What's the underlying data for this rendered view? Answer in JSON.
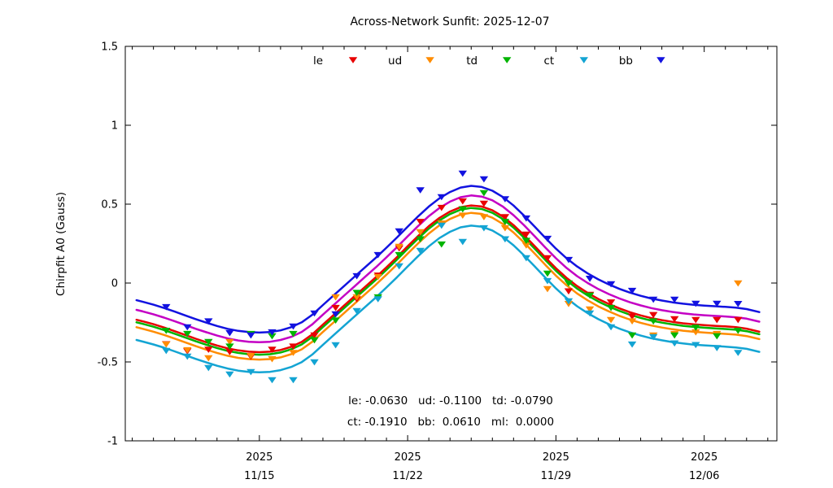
{
  "title": "Across-Network Sunfit: 2025-12-07",
  "chart_data": {
    "type": "line+scatter",
    "title": "Across-Network Sunfit: 2025-12-07",
    "xlabel": "",
    "ylabel": "Chirpfit A0 (Gauss)",
    "ylim": [
      -1,
      1.5
    ],
    "grid": false,
    "background_color": "#ffffff",
    "axis_color": "#000000",
    "marker_shape": "triangle-down",
    "yticks": [
      {
        "value": 1.5,
        "label": "1.5"
      },
      {
        "value": 1.0,
        "label": "1"
      },
      {
        "value": 0.5,
        "label": "0.5"
      },
      {
        "value": 0.0,
        "label": "0"
      },
      {
        "value": -0.5,
        "label": "-0.5"
      },
      {
        "value": -1.0,
        "label": "-1"
      }
    ],
    "x_day0_date": "2025-11-09",
    "x_domain_days": [
      -0.33,
      30.43
    ],
    "x_minor_tick_days": [
      0,
      1,
      2,
      3,
      4,
      5,
      6,
      7,
      8,
      9,
      10,
      11,
      12,
      13,
      14,
      15,
      16,
      17,
      18,
      19,
      20,
      21,
      22,
      23,
      24,
      25,
      26,
      27,
      28,
      29,
      30
    ],
    "x_major_ticks": [
      {
        "day": 6,
        "line1": "2025",
        "line2": "11/15"
      },
      {
        "day": 13,
        "line1": "2025",
        "line2": "11/22"
      },
      {
        "day": 20,
        "line1": "2025",
        "line2": "11/29"
      },
      {
        "day": 27,
        "line1": "2025",
        "line2": "12/06"
      }
    ],
    "legend": {
      "position": "top-center-inside",
      "entries": [
        {
          "label": "le",
          "color": "#e80000"
        },
        {
          "label": "ud",
          "color": "#ff8c00"
        },
        {
          "label": "td",
          "color": "#00b400"
        },
        {
          "label": "ct",
          "color": "#13a4d3"
        },
        {
          "label": "bb",
          "color": "#1212e0"
        }
      ]
    },
    "annotation": {
      "lines": [
        "le: -0.0630   ud: -0.1100   td: -0.0790",
        "ct: -0.1910   bb:  0.0610   ml:  0.0000"
      ]
    },
    "fit_offsets": {
      "le": -0.063,
      "ud": -0.11,
      "td": -0.079,
      "ct": -0.191,
      "bb": 0.061,
      "ml": 0.0
    },
    "base_curve_days": [
      0.2,
      0.5,
      1,
      1.5,
      2,
      2.5,
      3,
      3.5,
      4,
      4.5,
      5,
      5.5,
      6,
      6.5,
      7,
      7.5,
      8,
      8.5,
      9,
      9.5,
      10,
      10.5,
      11,
      11.5,
      12,
      12.5,
      13,
      13.5,
      14,
      14.5,
      15,
      15.5,
      16,
      16.5,
      17,
      17.5,
      18,
      18.5,
      19,
      19.5,
      20,
      20.5,
      21,
      21.5,
      22,
      22.5,
      23,
      23.5,
      24,
      24.5,
      25,
      25.5,
      26,
      26.5,
      27,
      27.5,
      28,
      28.5,
      29,
      29.6
    ],
    "base_curve_values": [
      -0.17,
      -0.18,
      -0.198,
      -0.219,
      -0.242,
      -0.266,
      -0.29,
      -0.312,
      -0.333,
      -0.351,
      -0.364,
      -0.372,
      -0.375,
      -0.372,
      -0.361,
      -0.341,
      -0.31,
      -0.262,
      -0.2,
      -0.14,
      -0.08,
      -0.02,
      0.04,
      0.1,
      0.163,
      0.228,
      0.296,
      0.362,
      0.424,
      0.476,
      0.516,
      0.544,
      0.555,
      0.548,
      0.524,
      0.484,
      0.43,
      0.366,
      0.296,
      0.225,
      0.157,
      0.096,
      0.044,
      0.0,
      -0.038,
      -0.07,
      -0.098,
      -0.122,
      -0.142,
      -0.159,
      -0.172,
      -0.183,
      -0.192,
      -0.199,
      -0.204,
      -0.208,
      -0.212,
      -0.217,
      -0.226,
      -0.245
    ],
    "curve_draw_order": [
      "ct",
      "ud",
      "td",
      "le",
      "ml",
      "bb"
    ],
    "extra_curves": [
      {
        "name": "ml",
        "color": "#c400c4",
        "offset": 0.0
      }
    ],
    "scatter_days": [
      1.6,
      2.6,
      3.6,
      4.6,
      5.6,
      6.6,
      7.6,
      8.6,
      9.6,
      10.6,
      11.6,
      12.6,
      13.6,
      14.6,
      15.6,
      16.6,
      17.6,
      18.6,
      19.6,
      20.6,
      21.6,
      22.6,
      23.6,
      24.6,
      25.6,
      26.6,
      27.6,
      28.6
    ],
    "series": [
      {
        "name": "le",
        "color": "#e80000",
        "offset": -0.063,
        "values": [
          -0.385,
          -0.43,
          -0.42,
          -0.435,
          -0.465,
          -0.42,
          -0.4,
          -0.33,
          -0.155,
          -0.1,
          0.05,
          0.222,
          0.39,
          0.479,
          0.52,
          0.505,
          0.42,
          0.31,
          0.16,
          -0.05,
          -0.072,
          -0.12,
          -0.21,
          -0.2,
          -0.227,
          -0.232,
          -0.232,
          -0.232
        ]
      },
      {
        "name": "ud",
        "color": "#ff8c00",
        "offset": -0.11,
        "values": [
          -0.387,
          -0.423,
          -0.474,
          -0.371,
          -0.46,
          -0.48,
          -0.44,
          -0.36,
          -0.088,
          -0.088,
          0.04,
          0.232,
          0.325,
          0.38,
          0.43,
          0.42,
          0.35,
          0.24,
          -0.036,
          -0.13,
          -0.165,
          -0.232,
          -0.24,
          -0.33,
          -0.32,
          -0.31,
          -0.32,
          0.0
        ]
      },
      {
        "name": "td",
        "color": "#00b400",
        "offset": -0.079,
        "values": [
          -0.3,
          -0.32,
          -0.371,
          -0.4,
          -0.32,
          -0.335,
          -0.32,
          -0.36,
          -0.235,
          -0.06,
          -0.088,
          0.18,
          0.28,
          0.247,
          0.47,
          0.572,
          0.39,
          0.27,
          0.062,
          0.0,
          -0.077,
          -0.155,
          -0.33,
          -0.24,
          -0.33,
          -0.28,
          -0.335,
          -0.3
        ]
      },
      {
        "name": "ct",
        "color": "#13a4d3",
        "offset": -0.191,
        "values": [
          -0.428,
          -0.464,
          -0.536,
          -0.577,
          -0.562,
          -0.613,
          -0.613,
          -0.5,
          -0.392,
          -0.175,
          -0.1,
          0.108,
          0.206,
          0.366,
          0.263,
          0.35,
          0.28,
          0.16,
          0.015,
          -0.113,
          -0.19,
          -0.278,
          -0.387,
          -0.34,
          -0.38,
          -0.39,
          -0.41,
          -0.44
        ]
      },
      {
        "name": "bb",
        "color": "#1212e0",
        "offset": 0.061,
        "values": [
          -0.15,
          -0.278,
          -0.24,
          -0.315,
          -0.33,
          -0.31,
          -0.273,
          -0.19,
          -0.196,
          0.046,
          0.18,
          0.33,
          0.59,
          0.547,
          0.696,
          0.66,
          0.534,
          0.412,
          0.283,
          0.149,
          0.03,
          -0.005,
          -0.047,
          -0.103,
          -0.103,
          -0.129,
          -0.129,
          -0.13
        ]
      }
    ]
  }
}
